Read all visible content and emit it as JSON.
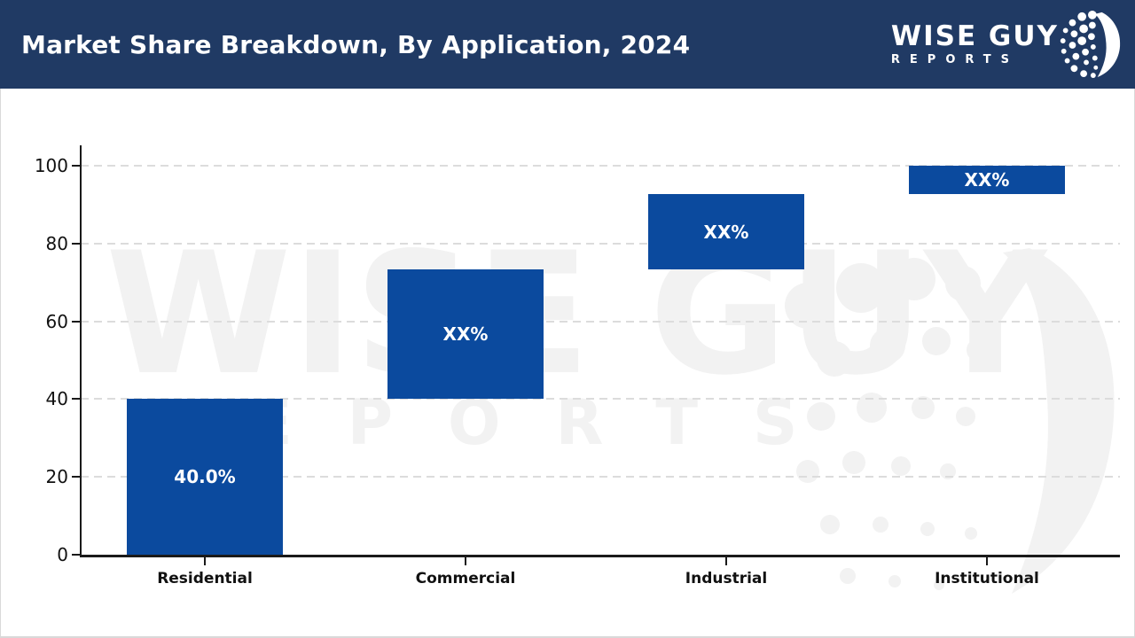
{
  "header": {
    "title": "Market Share Breakdown, By Application, 2024",
    "logo": {
      "wordmark": "WISE GUY",
      "subtext": "REPORTS"
    }
  },
  "watermark": {
    "line1": "WISE GUY",
    "line2": "REPORTS"
  },
  "chart_data": {
    "type": "bar",
    "subtype": "stacked-waterfall",
    "title": "Market Share Breakdown, By Application, 2024",
    "categories": [
      "Residential",
      "Commercial",
      "Industrial",
      "Institutional"
    ],
    "segments": [
      {
        "category": "Residential",
        "start": 0,
        "end": 40,
        "value_pct": 40.0,
        "label": "40.0%"
      },
      {
        "category": "Commercial",
        "start": 40,
        "end": 73.3,
        "value_pct": 33.3,
        "label": "XX%"
      },
      {
        "category": "Industrial",
        "start": 73.3,
        "end": 92.6,
        "value_pct": 19.3,
        "label": "XX%"
      },
      {
        "category": "Institutional",
        "start": 92.6,
        "end": 100,
        "value_pct": 7.4,
        "label": "XX%"
      }
    ],
    "y_ticks": [
      0,
      20,
      40,
      60,
      80,
      100
    ],
    "ylim": [
      0,
      100
    ],
    "xlabel": "",
    "ylabel": "",
    "grid": "horizontal-dashed",
    "legend": "none",
    "colors": {
      "bar": "#0b4a9e",
      "bar_label": "#ffffff",
      "header_bg": "#203a64",
      "grid_line": "#dcdcdc",
      "axis": "#1a1a1a",
      "watermark": "#f2f2f2"
    }
  }
}
